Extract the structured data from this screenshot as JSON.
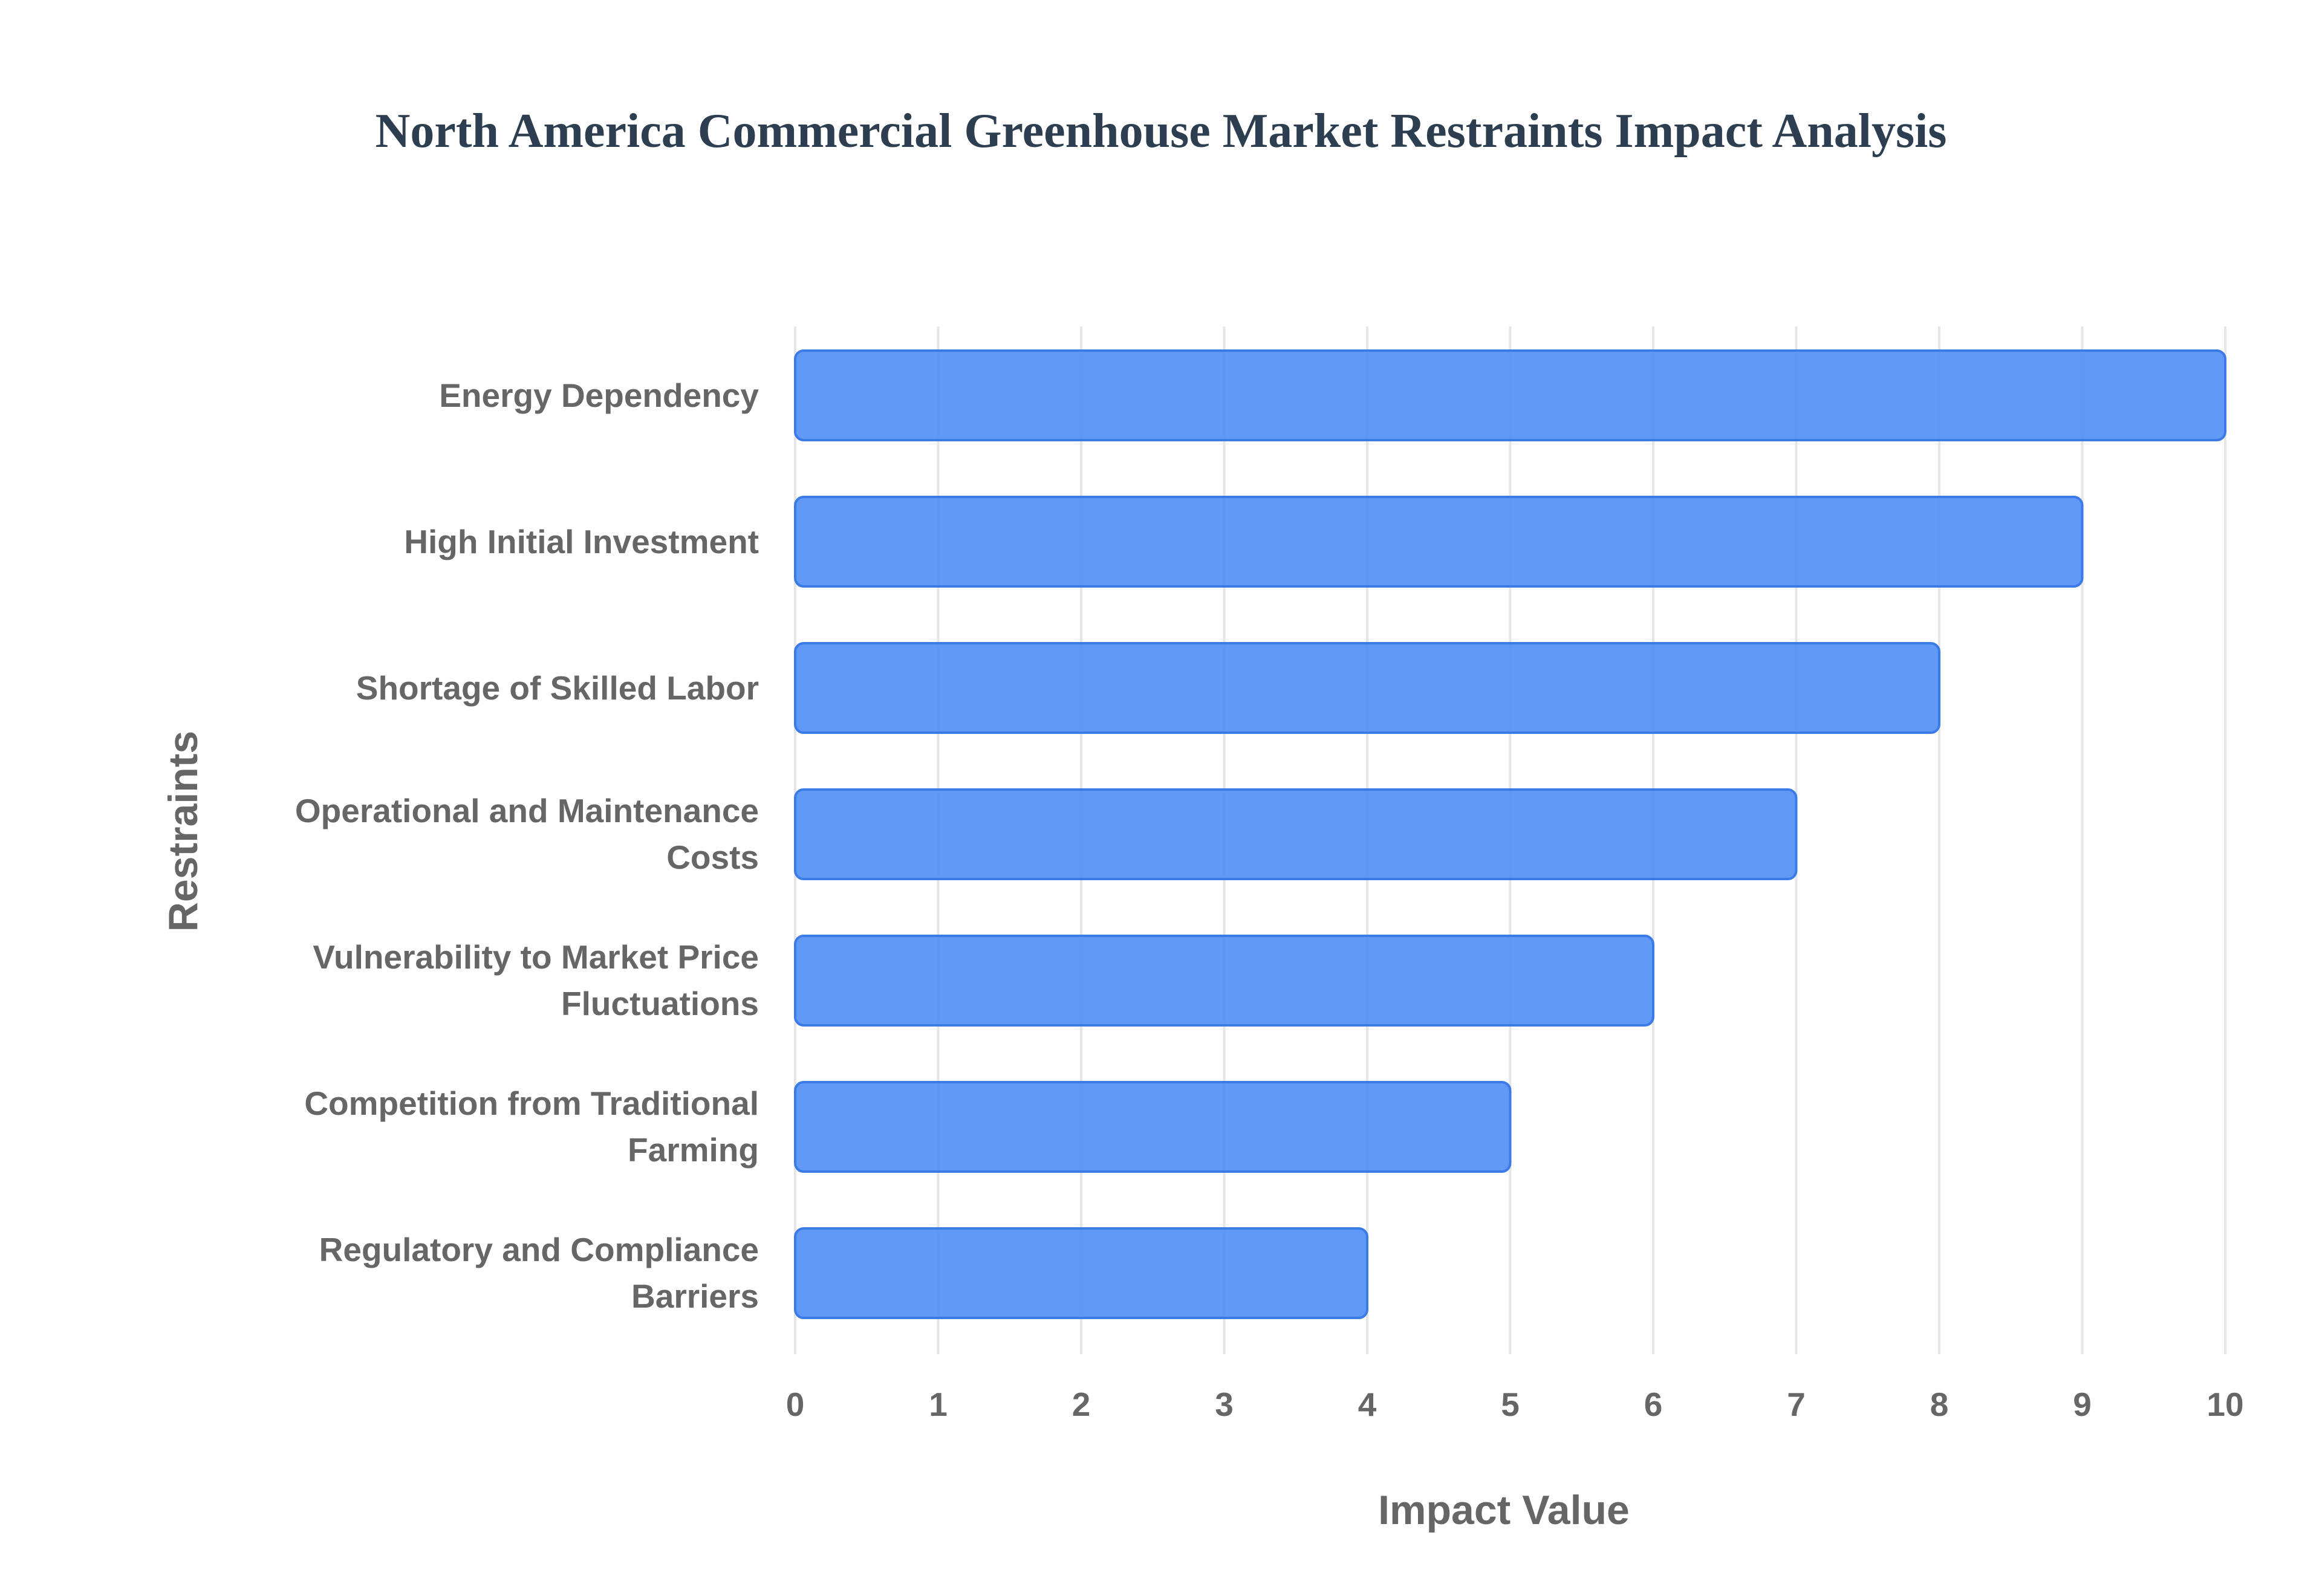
{
  "chart_data": {
    "type": "bar",
    "orientation": "horizontal",
    "title": "North America Commercial Greenhouse Market Restraints Impact Analysis",
    "xlabel": "Impact Value",
    "ylabel": "Restraints",
    "categories": [
      "Energy Dependency",
      "High Initial Investment",
      "Shortage of Skilled Labor",
      "Operational and Maintenance Costs",
      "Vulnerability to Market Price Fluctuations",
      "Competition from Traditional Farming",
      "Regulatory and Compliance Barriers"
    ],
    "category_lines": [
      [
        "Energy Dependency"
      ],
      [
        "High Initial Investment"
      ],
      [
        "Shortage of Skilled Labor"
      ],
      [
        "Operational and Maintenance",
        "Costs"
      ],
      [
        "Vulnerability to Market Price",
        "Fluctuations"
      ],
      [
        "Competition from Traditional",
        "Farming"
      ],
      [
        "Regulatory and Compliance",
        "Barriers"
      ]
    ],
    "values": [
      10,
      9,
      8,
      7,
      6,
      5,
      4
    ],
    "xlim": [
      0,
      10
    ],
    "xticks": [
      "0",
      "1",
      "2",
      "3",
      "4",
      "5",
      "6",
      "7",
      "8",
      "9",
      "10"
    ],
    "grid": true,
    "legend": "none",
    "colors": {
      "bar_fill": "#4f8ef5",
      "bar_stroke": "#3b7be8",
      "grid": "#e6e6e6",
      "text": "#666666",
      "title": "#2c3e50"
    }
  }
}
